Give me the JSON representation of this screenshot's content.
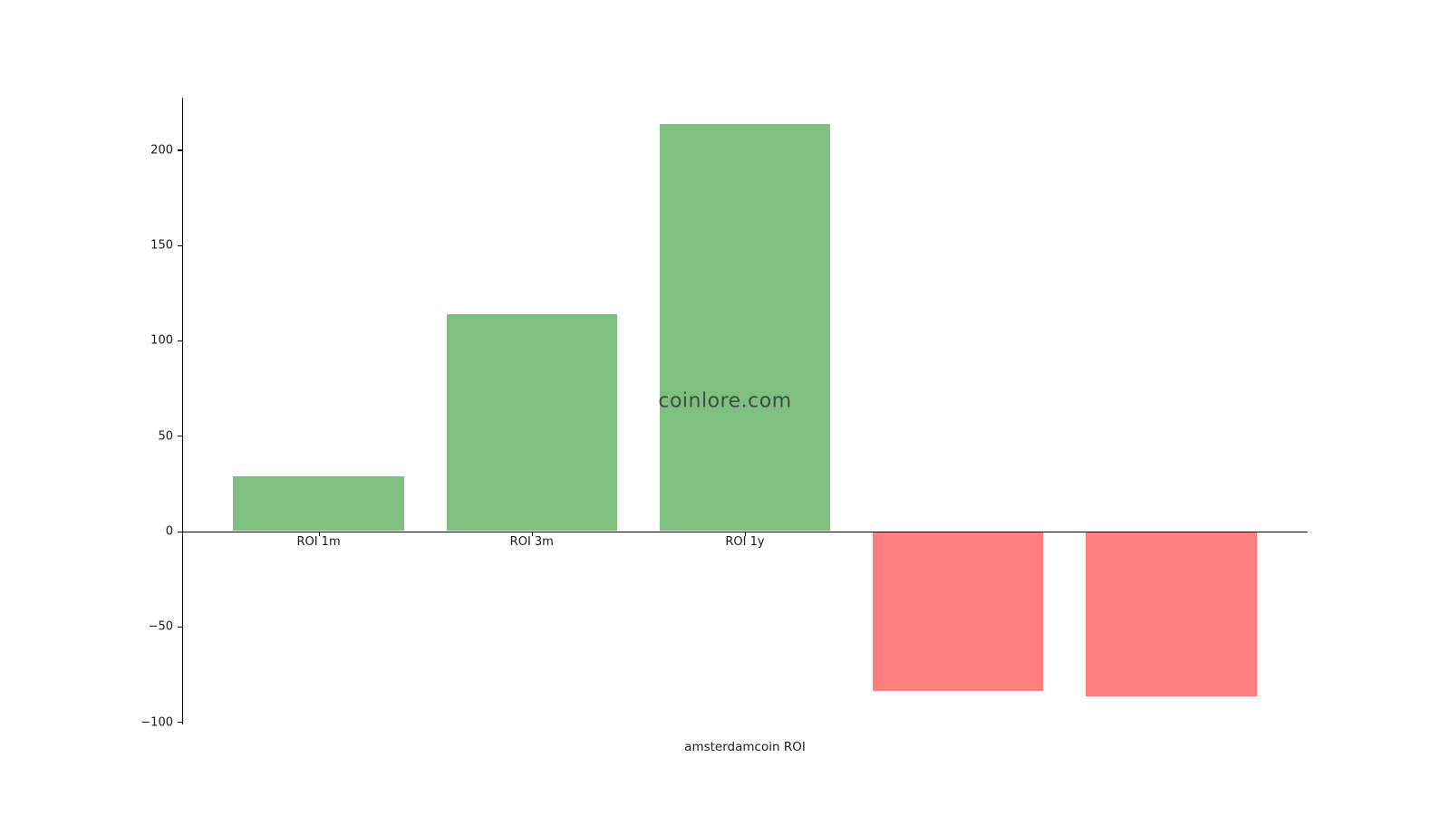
{
  "watermark": {
    "text": "coinlore.com",
    "color_hex": "#323a32"
  },
  "chart_data": {
    "type": "bar",
    "title": "",
    "xlabel": "amsterdamcoin ROI",
    "ylabel": "",
    "categories": [
      "ROI 1m",
      "ROI 3m",
      "ROI 1y",
      "",
      ""
    ],
    "values": [
      28.5,
      113.5,
      213.4,
      -84.0,
      -86.6
    ],
    "bar_color_positive": "#7fbf7f",
    "bar_color_negative": "#ff7f7f",
    "axis_color": "#000000",
    "ylim": [
      -101,
      227
    ],
    "yticks": [
      200,
      150,
      100,
      50,
      0,
      -50,
      -100
    ],
    "grid": false,
    "legend": "none"
  }
}
